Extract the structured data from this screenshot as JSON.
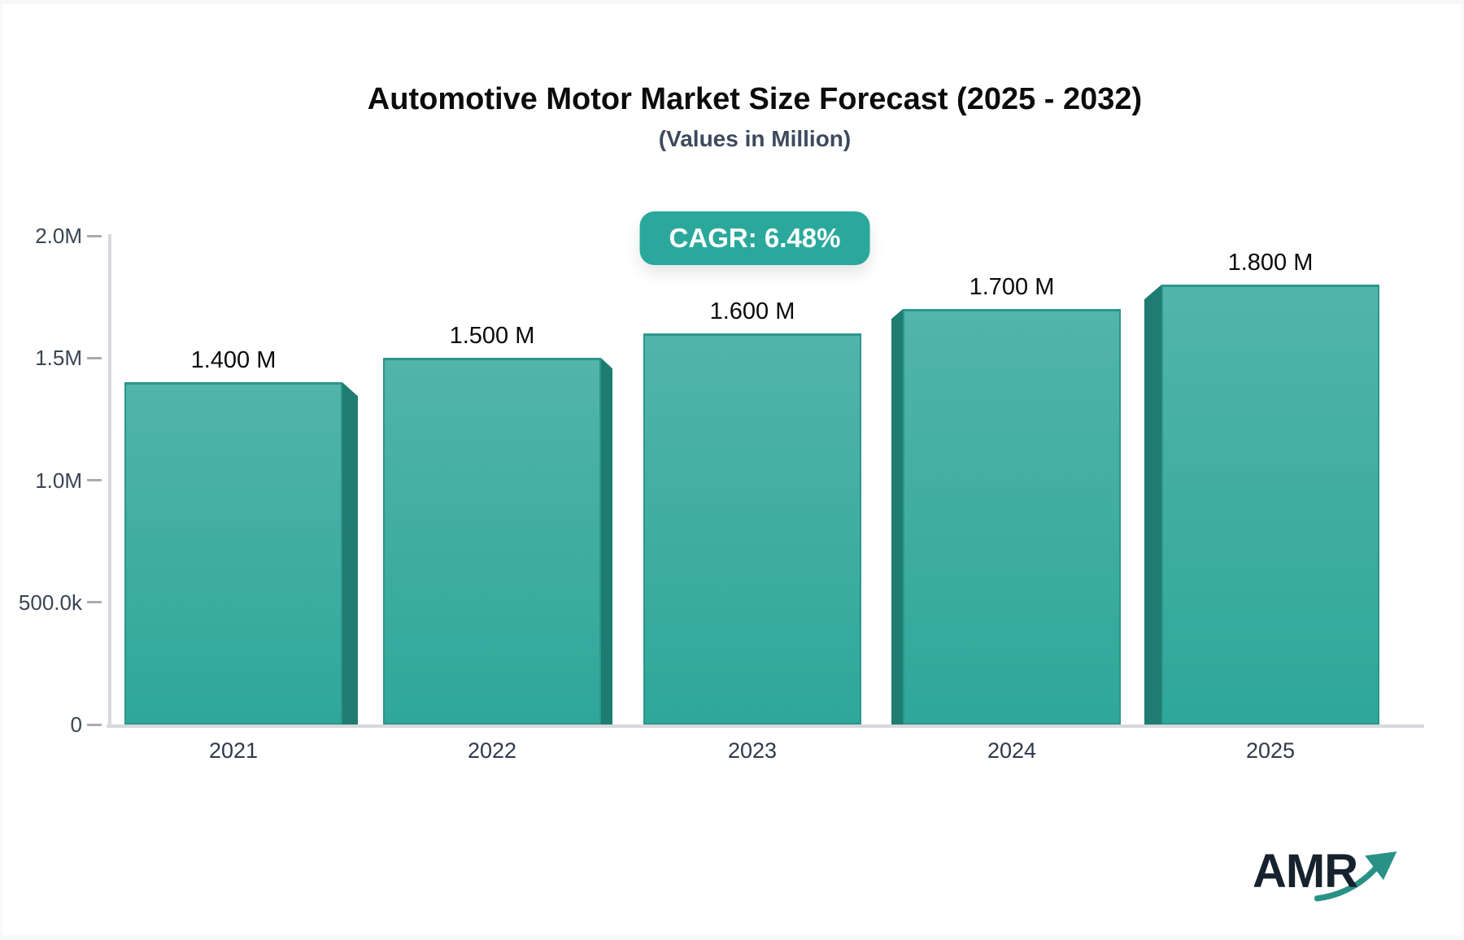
{
  "page": {
    "background": "#f7f8fa",
    "card_background": "#ffffff"
  },
  "header": {
    "title": "Automotive Motor Market Size Forecast (2025 - 2032)",
    "subtitle": "(Values in Million)",
    "cagr_label": "CAGR: 6.48%"
  },
  "branding": {
    "logo_text": "AMR"
  },
  "chart_data": {
    "type": "bar",
    "title": "Automotive Motor Market Size Forecast (2025 - 2032)",
    "subtitle": "(Values in Million)",
    "cagr": "6.48%",
    "categories": [
      "2021",
      "2022",
      "2023",
      "2024",
      "2025"
    ],
    "values": [
      1400000,
      1500000,
      1600000,
      1700000,
      1800000
    ],
    "value_labels": [
      "1.400 M",
      "1.500 M",
      "1.600 M",
      "1.700 M",
      "1.800 M"
    ],
    "y_tick_labels": [
      "0",
      "500.0k",
      "1.0M",
      "1.5M",
      "2.0M"
    ],
    "y_tick_values": [
      0,
      500000,
      1000000,
      1500000,
      2000000
    ],
    "ylim": [
      0,
      2000000
    ],
    "grid": false,
    "legend": false,
    "colors": {
      "bar_gradient_top": "#52b4aa",
      "bar_gradient_bottom": "#2ea79a",
      "bar_side": "#1e7c71",
      "bar_border": "#2d968a",
      "badge_background": "#2ba89c",
      "badge_text": "#ffffff",
      "axis_line": "#d6d8dc",
      "tick_mark": "#a8acb2",
      "y_label_text": "#3a4553",
      "x_label_text": "#2e3a4b",
      "title_text": "#0c0c0e",
      "subtitle_text": "#3e4a5c",
      "logo_text": "#16222d",
      "logo_arrow": "#2a9186"
    }
  }
}
